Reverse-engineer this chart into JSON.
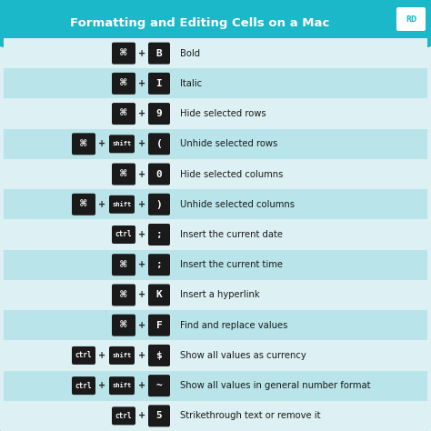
{
  "title": "Formatting and Editing Cells on a Mac",
  "title_bg": "#1ab8c8",
  "title_color": "#ffffff",
  "logo_text": "RD",
  "logo_bg": "#ffffff",
  "logo_color": "#1ab8c8",
  "bg_light": "#ddf0f3",
  "bg_dark": "#b8e4ea",
  "text_color": "#1a1a1a",
  "key_bg": "#1a1a1a",
  "key_color": "#ffffff",
  "rows": [
    {
      "keys": [
        "⌘",
        "+",
        "B"
      ],
      "description": "Bold",
      "highlighted": false
    },
    {
      "keys": [
        "⌘",
        "+",
        "I"
      ],
      "description": "Italic",
      "highlighted": true
    },
    {
      "keys": [
        "⌘",
        "+",
        "9"
      ],
      "description": "Hide selected rows",
      "highlighted": false
    },
    {
      "keys": [
        "⌘",
        "+",
        "shift",
        "+",
        "("
      ],
      "description": "Unhide selected rows",
      "highlighted": true
    },
    {
      "keys": [
        "⌘",
        "+",
        "0"
      ],
      "description": "Hide selected columns",
      "highlighted": false
    },
    {
      "keys": [
        "⌘",
        "+",
        "shift",
        "+",
        ")"
      ],
      "description": "Unhide selected columns",
      "highlighted": true
    },
    {
      "keys": [
        "ctrl",
        "+",
        ";"
      ],
      "description": "Insert the current date",
      "highlighted": false
    },
    {
      "keys": [
        "⌘",
        "+",
        ";"
      ],
      "description": "Insert the current time",
      "highlighted": true
    },
    {
      "keys": [
        "⌘",
        "+",
        "K"
      ],
      "description": "Insert a hyperlink",
      "highlighted": false
    },
    {
      "keys": [
        "⌘",
        "+",
        "F"
      ],
      "description": "Find and replace values",
      "highlighted": true
    },
    {
      "keys": [
        "ctrl",
        "+",
        "shift",
        "+",
        "$"
      ],
      "description": "Show all values as currency",
      "highlighted": false
    },
    {
      "keys": [
        "ctrl",
        "+",
        "shift",
        "+",
        "~"
      ],
      "description": "Show all values in general number format",
      "highlighted": true
    },
    {
      "keys": [
        "ctrl",
        "+",
        "5"
      ],
      "description": "Strikethrough text or remove it",
      "highlighted": false
    }
  ]
}
